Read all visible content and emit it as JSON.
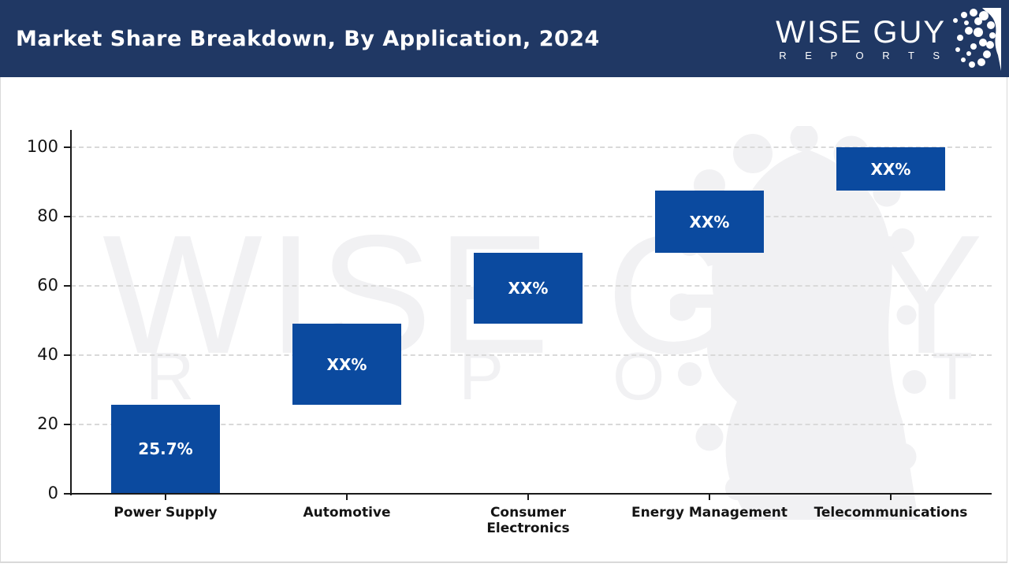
{
  "header": {
    "title": "Market Share Breakdown, By Application, 2024",
    "bg_color": "#203864",
    "logo": {
      "line1": "WISE GUY",
      "line2": "R E P O R T S"
    }
  },
  "watermark": {
    "line1": "WISE GUY",
    "line2": "R E P O R T S"
  },
  "chart_data": {
    "type": "bar",
    "subtype": "waterfall-floating-bars",
    "title": "Market Share Breakdown, By Application, 2024",
    "categories": [
      "Power Supply",
      "Automotive",
      "Consumer Electronics",
      "Energy Management",
      "Telecommunications"
    ],
    "category_label_lines": [
      [
        "Power Supply"
      ],
      [
        "Automotive"
      ],
      [
        "Consumer",
        "Electronics"
      ],
      [
        "Energy Management"
      ],
      [
        "Telecommunications"
      ]
    ],
    "segments": [
      {
        "category": "Power Supply",
        "start": 0,
        "end": 25.7,
        "label": "25.7%"
      },
      {
        "category": "Automotive",
        "start": 25.7,
        "end": 49.0,
        "label": "XX%"
      },
      {
        "category": "Consumer Electronics",
        "start": 49.0,
        "end": 69.5,
        "label": "XX%"
      },
      {
        "category": "Energy Management",
        "start": 69.5,
        "end": 87.5,
        "label": "XX%"
      },
      {
        "category": "Telecommunications",
        "start": 87.5,
        "end": 100,
        "label": "XX%"
      }
    ],
    "y_ticks": [
      0,
      20,
      40,
      60,
      80,
      100
    ],
    "ylim": [
      0,
      100
    ],
    "xlabel": "",
    "ylabel": "",
    "bar_color": "#0b4a9f",
    "grid": "horizontal-dashed",
    "legend": "none"
  }
}
